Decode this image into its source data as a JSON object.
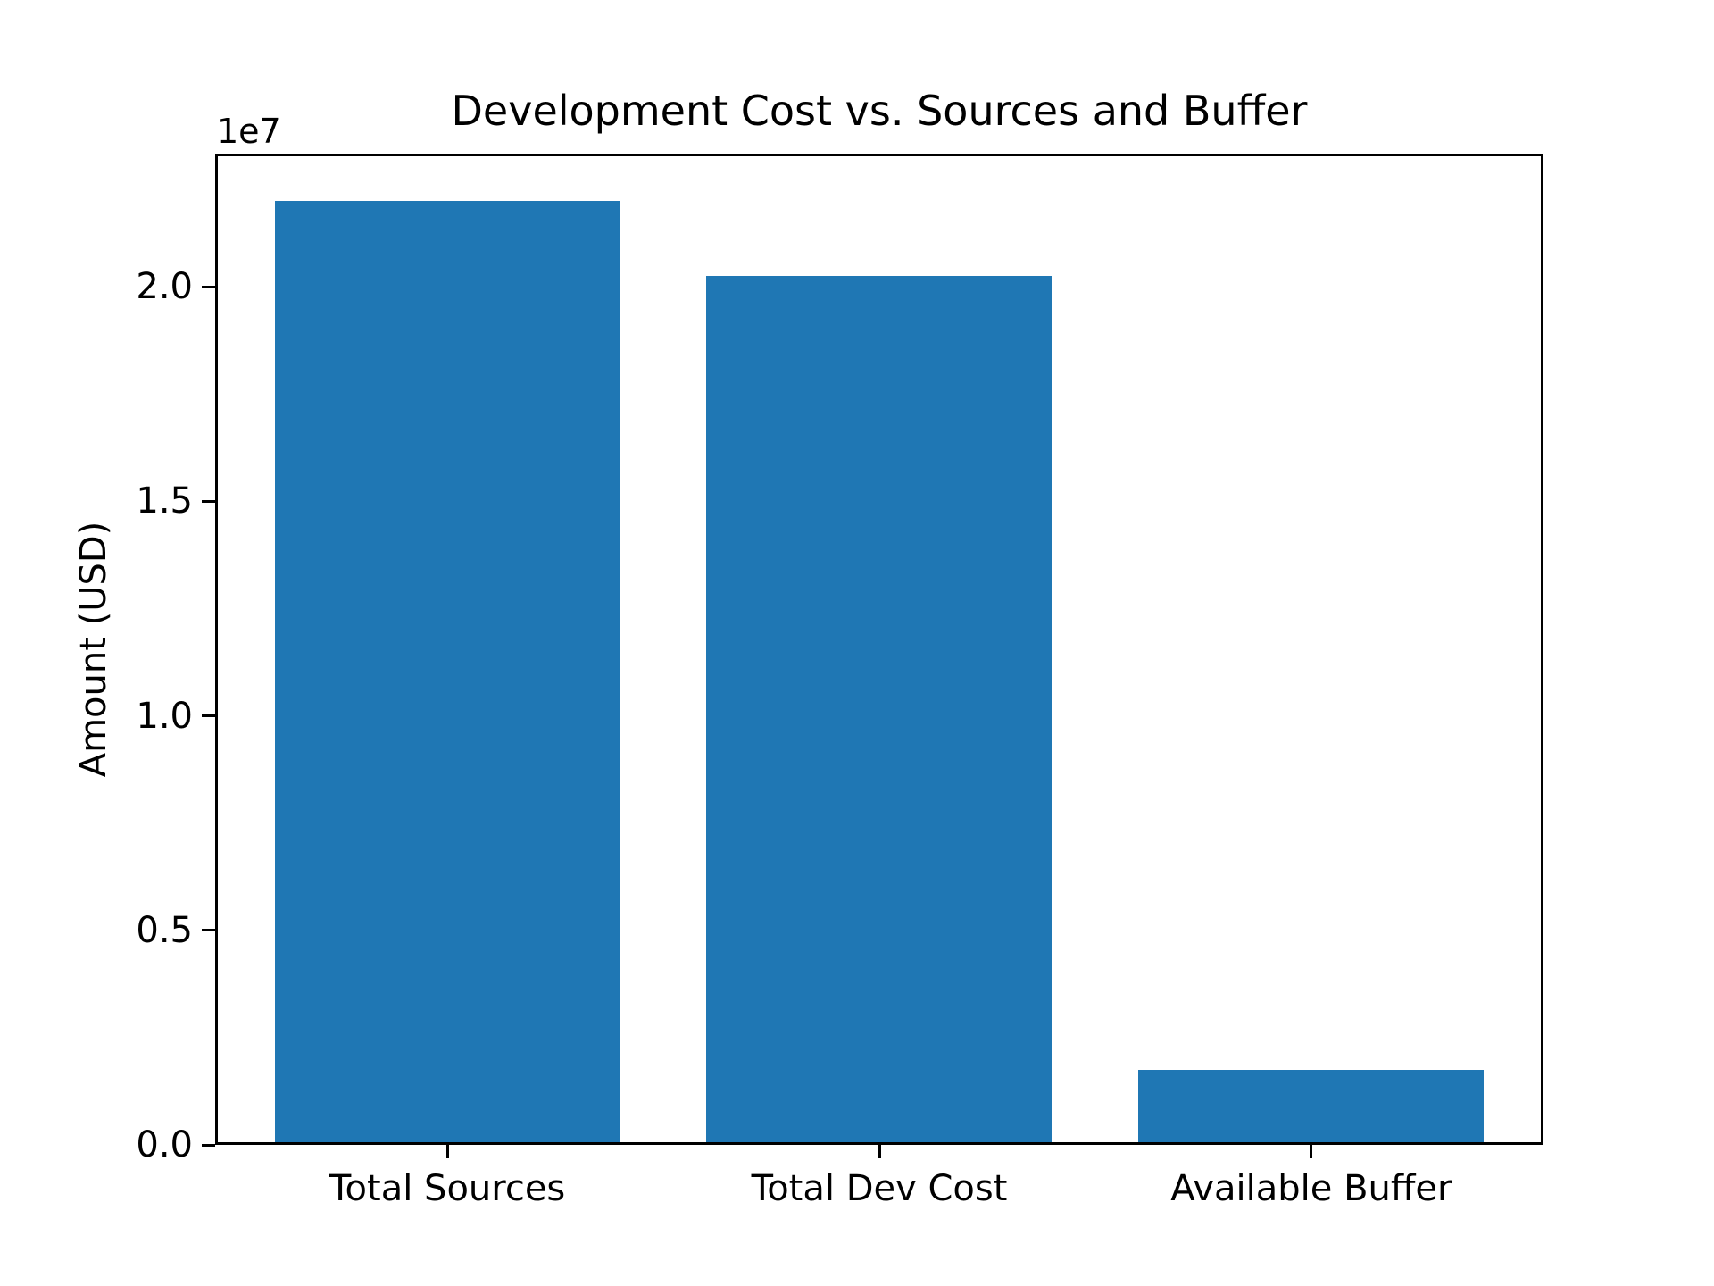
{
  "figure": {
    "background": "#ffffff"
  },
  "chart_data": {
    "type": "bar",
    "title": "Development Cost vs. Sources and Buffer",
    "xlabel": "",
    "ylabel": "Amount (USD)",
    "categories": [
      "Total Sources",
      "Total Dev Cost",
      "Available Buffer"
    ],
    "values": [
      22000000,
      20250000,
      1750000
    ],
    "bar_color": "#1f77b4",
    "ylim": [
      0,
      23100000
    ],
    "yticks": {
      "values": [
        0,
        5000000,
        10000000,
        15000000,
        20000000
      ],
      "labels": [
        "0.0",
        "0.5",
        "1.0",
        "1.5",
        "2.0"
      ]
    },
    "y_offset_text": "1e7",
    "grid": false,
    "legend": "none"
  }
}
